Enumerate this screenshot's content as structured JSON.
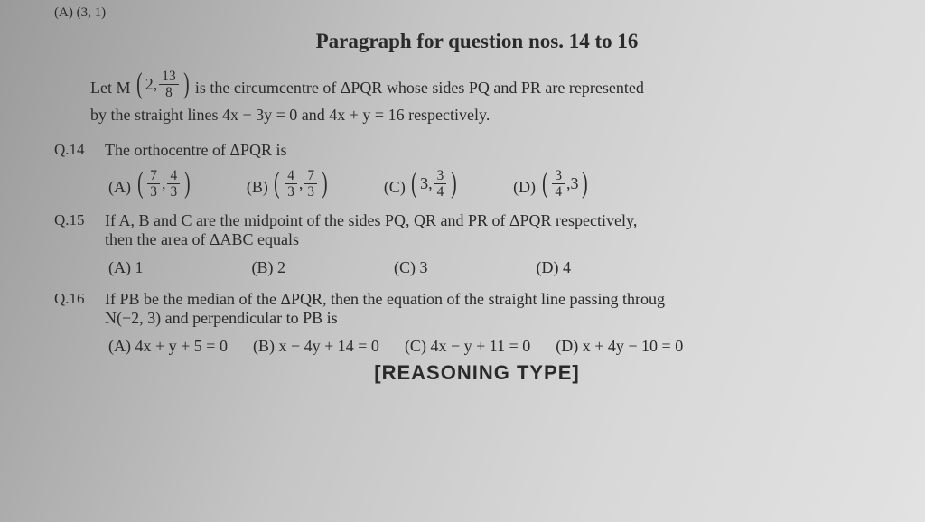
{
  "top_crumb": "(A) (3, 1)",
  "para_heading": "Paragraph for question nos. 14 to 16",
  "passage": {
    "line1_pre": "Let M",
    "M_point": {
      "a": "2",
      "b_num": "13",
      "b_den": "8"
    },
    "line1_post": " is the circumcentre of ΔPQR whose sides PQ and PR are represented",
    "line2": "by the straight lines 4x − 3y = 0 and 4x + y = 16 respectively."
  },
  "q14": {
    "num": "Q.14",
    "text": "The orthocentre of ΔPQR is",
    "opts": {
      "A": {
        "a_num": "7",
        "a_den": "3",
        "b_num": "4",
        "b_den": "3"
      },
      "B": {
        "a_num": "4",
        "a_den": "3",
        "b_num": "7",
        "b_den": "3"
      },
      "C": {
        "a": "3",
        "b_num": "3",
        "b_den": "4"
      },
      "D": {
        "a_num": "3",
        "a_den": "4",
        "b": "3"
      }
    }
  },
  "q15": {
    "num": "Q.15",
    "text1": "If A, B and C are the midpoint of the sides PQ, QR and PR of ΔPQR respectively,",
    "text2": "then the area of ΔABC equals",
    "opts": {
      "A": "1",
      "B": "2",
      "C": "3",
      "D": "4"
    }
  },
  "q16": {
    "num": "Q.16",
    "text1": "If PB be the median of the ΔPQR, then the equation of the straight line passing throug",
    "text2": "N(−2, 3) and perpendicular to PB is",
    "opts": {
      "A": "4x + y + 5 = 0",
      "B": "x − 4y + 14 = 0",
      "C": "4x − y + 11 = 0",
      "D": "x + 4y − 10 = 0"
    }
  },
  "reasoning": "[REASONING  TYPE]"
}
